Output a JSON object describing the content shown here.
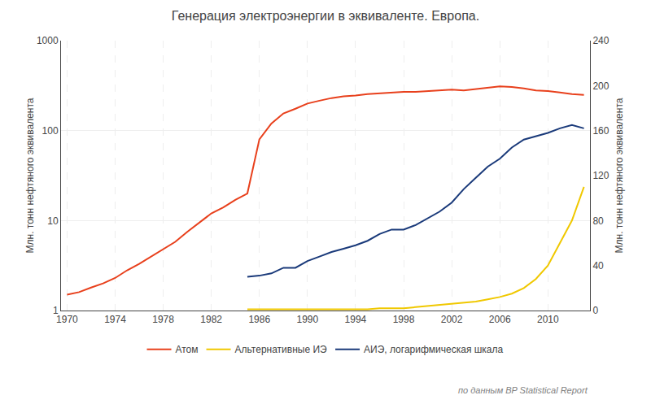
{
  "chart_data": {
    "type": "line",
    "title": "Генерация электроэнергии в эквиваленте. Европа.",
    "y_label": "Млн. тонн нефтяного эквивалента",
    "y2_label": "Млн. тонн нефтяного эквивалента",
    "annotations": [
      "по данным BP Statistical Report"
    ],
    "xlim": [
      1969.5,
      2013.5
    ],
    "xticks": [
      1970,
      1974,
      1978,
      1982,
      1986,
      1990,
      1994,
      1998,
      2002,
      2006,
      2010
    ],
    "log": "y",
    "ylim": [
      1,
      1000
    ],
    "yticks": [
      1,
      10,
      100,
      1000
    ],
    "y2lim": [
      0,
      240
    ],
    "y2ticks": [
      0,
      40,
      80,
      120,
      160,
      200,
      240
    ],
    "grid": true,
    "legend": "bottom",
    "series": [
      {
        "name": "Атом",
        "color": "#e8401c",
        "x": [
          1970,
          1971,
          1972,
          1973,
          1974,
          1975,
          1976,
          1977,
          1978,
          1979,
          1980,
          1981,
          1982,
          1983,
          1984,
          1985,
          1986,
          1987,
          1988,
          1989,
          1990,
          1991,
          1992,
          1993,
          1994,
          1995,
          1996,
          1997,
          1998,
          1999,
          2000,
          2001,
          2002,
          2003,
          2004,
          2005,
          2006,
          2007,
          2008,
          2009,
          2010,
          2011,
          2012,
          2013
        ],
        "values": [
          1.5,
          1.6,
          1.8,
          2.0,
          2.3,
          2.8,
          3.3,
          4.0,
          4.8,
          5.8,
          7.5,
          9.5,
          12,
          14,
          17,
          20,
          80,
          120,
          155,
          175,
          200,
          215,
          230,
          240,
          245,
          255,
          260,
          265,
          270,
          270,
          275,
          280,
          285,
          280,
          290,
          300,
          310,
          305,
          295,
          280,
          275,
          265,
          255,
          250
        ]
      },
      {
        "name": "Альтернативные ИЭ",
        "color": "#f0c800",
        "axis": "y2",
        "x": [
          1985,
          1986,
          1987,
          1988,
          1989,
          1990,
          1991,
          1992,
          1993,
          1994,
          1995,
          1996,
          1997,
          1998,
          1999,
          2000,
          2001,
          2002,
          2003,
          2004,
          2005,
          2006,
          2007,
          2008,
          2009,
          2010,
          2011,
          2012,
          2013
        ],
        "values": [
          1,
          1,
          1,
          1,
          1,
          1,
          1,
          1,
          1,
          1,
          1,
          2,
          2,
          2,
          3,
          4,
          5,
          6,
          7,
          8,
          10,
          12,
          15,
          20,
          28,
          40,
          60,
          80,
          110
        ]
      },
      {
        "name": "АИЭ, логарифмическая шкала",
        "color": "#1a3a7a",
        "axis": "y2",
        "x": [
          1985,
          1986,
          1987,
          1988,
          1989,
          1990,
          1991,
          1992,
          1993,
          1994,
          1995,
          1996,
          1997,
          1998,
          1999,
          2000,
          2001,
          2002,
          2003,
          2004,
          2005,
          2006,
          2007,
          2008,
          2009,
          2010,
          2011,
          2012,
          2013
        ],
        "values": [
          30,
          31,
          33,
          38,
          38,
          44,
          48,
          52,
          55,
          58,
          62,
          68,
          72,
          72,
          76,
          82,
          88,
          96,
          108,
          118,
          128,
          135,
          145,
          152,
          155,
          158,
          162,
          165,
          162
        ]
      }
    ]
  }
}
